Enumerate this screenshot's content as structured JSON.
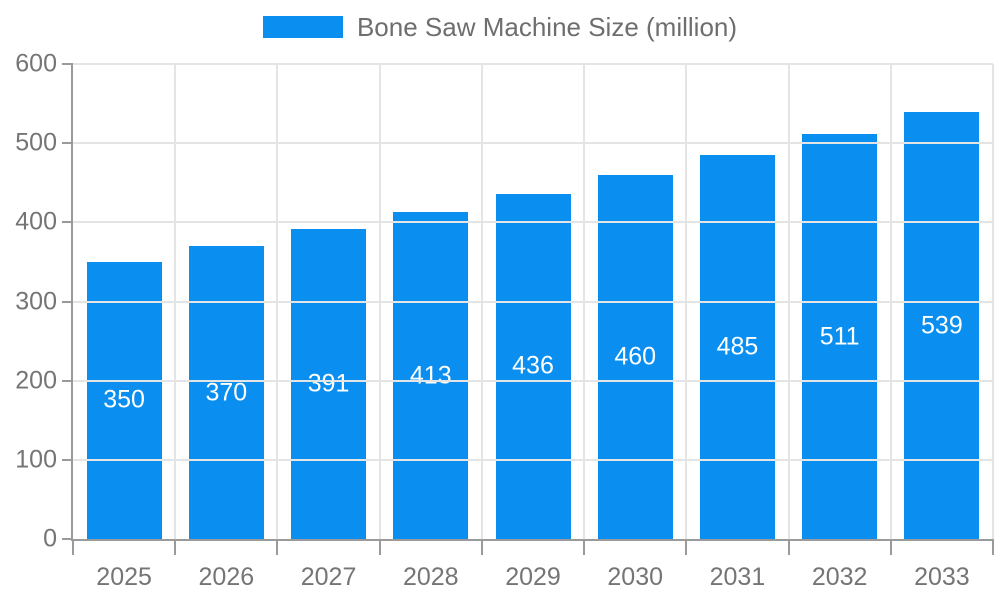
{
  "chart_data": {
    "type": "bar",
    "title": "Bone Saw Machine Size (million)",
    "categories": [
      "2025",
      "2026",
      "2027",
      "2028",
      "2029",
      "2030",
      "2031",
      "2032",
      "2033"
    ],
    "values": [
      350,
      370,
      391,
      413,
      436,
      460,
      485,
      511,
      539
    ],
    "xlabel": "",
    "ylabel": "",
    "ylim": [
      0,
      600
    ],
    "yticks": [
      0,
      100,
      200,
      300,
      400,
      500,
      600
    ],
    "grid": true,
    "legend_position": "top",
    "bar_labels_inside": true
  },
  "legend": {
    "label": "Bone Saw Machine Size (million)"
  },
  "colors": {
    "bar": "#0a8ff0",
    "bar_label_text": "#ffffff",
    "tick_text": "#757575",
    "legend_text": "#6e6e6e",
    "gridline": "#e4e4e4",
    "axis_line": "#9a9a9a",
    "background": "#ffffff"
  }
}
